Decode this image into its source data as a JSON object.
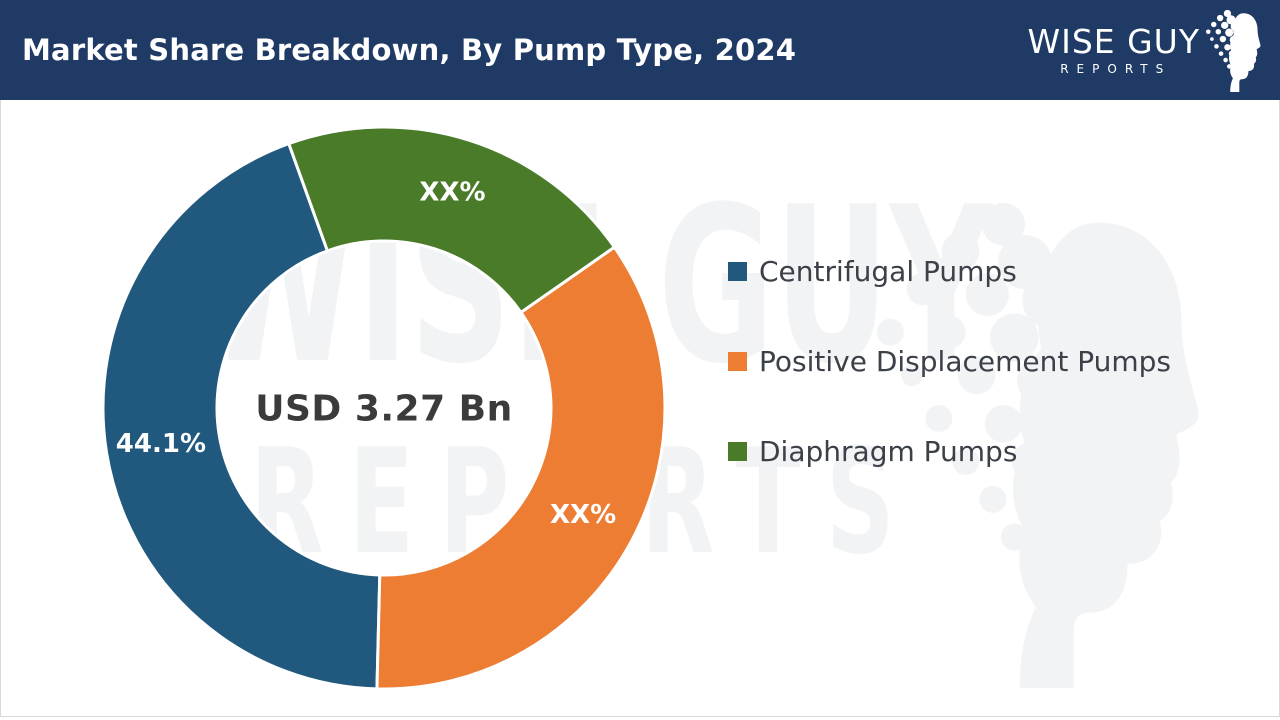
{
  "header": {
    "title": "Market Share Breakdown, By Pump Type, 2024",
    "logo": {
      "line1": "WISE GUY",
      "line2": "REPORTS"
    }
  },
  "watermark": {
    "line1": "WISE GUY",
    "line2": "REPORTS"
  },
  "chart_data": {
    "type": "pie",
    "donut": true,
    "title": "Market Share Breakdown, By Pump Type, 2024",
    "center_label": "USD 3.27 Bn",
    "start_angle_deg": 109.8,
    "direction": "counterclockwise",
    "legend_position": "right",
    "segments": [
      {
        "label": "Centrifugal Pumps",
        "value_pct": 44.1,
        "display_label": "44.1%",
        "color": "#20587E"
      },
      {
        "label": "Positive Displacement Pumps",
        "value_pct": 35.1,
        "display_label": "XX%",
        "color": "#EC7D33"
      },
      {
        "label": "Diaphragm Pumps",
        "value_pct": 20.8,
        "display_label": "XX%",
        "color": "#4A7B29"
      }
    ]
  },
  "colors": {
    "header_bg": "#203A66",
    "title_text": "#FFFFFF",
    "center_text": "#3B3B3B",
    "legend_text": "#3C4049",
    "watermark": "#F2F3F5",
    "frame_border": "#D9D9D9",
    "segment_label_text": "#FFFFFF"
  }
}
